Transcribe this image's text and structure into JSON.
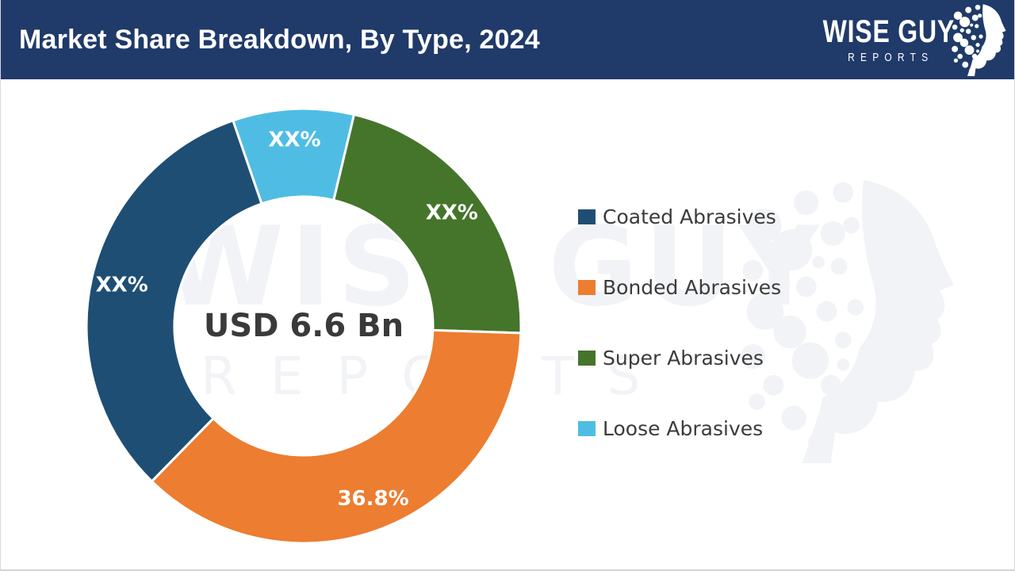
{
  "header": {
    "title": "Market Share Breakdown, By Type, 2024",
    "logo": {
      "line1": "WISE GUY",
      "line2": "REPORTS"
    }
  },
  "chart_data": {
    "type": "donut",
    "title": "Market Share Breakdown, By Type, 2024",
    "center_label": "USD 6.6 Bn",
    "start_angle_deg": -19,
    "legend_position": "right",
    "segments": [
      {
        "label": "Loose Abrasives",
        "value": 9.0,
        "display": "XX%",
        "color": "#4fbde3"
      },
      {
        "label": "Super Abrasives",
        "value": 21.8,
        "display": "XX%",
        "color": "#45742b"
      },
      {
        "label": "Bonded Abrasives",
        "value": 36.8,
        "display": "36.8%",
        "color": "#ec7d31"
      },
      {
        "label": "Coated Abrasives",
        "value": 32.4,
        "display": "XX%",
        "color": "#1f4e74"
      }
    ]
  },
  "legend": {
    "items": [
      {
        "label": "Coated Abrasives",
        "color": "#1f4e74"
      },
      {
        "label": "Bonded Abrasives",
        "color": "#ec7d31"
      },
      {
        "label": "Super Abrasives",
        "color": "#45742b"
      },
      {
        "label": "Loose Abrasives",
        "color": "#4fbde3"
      }
    ]
  },
  "watermark": {
    "line1": "WISE GUY",
    "line2": "REPORTS"
  },
  "colors": {
    "header_bg": "#203a69",
    "segment_edge": "#ffffff",
    "center_text": "#3a3a3a",
    "legend_text": "#3b3b3b",
    "watermark": "#f2f3f6"
  }
}
